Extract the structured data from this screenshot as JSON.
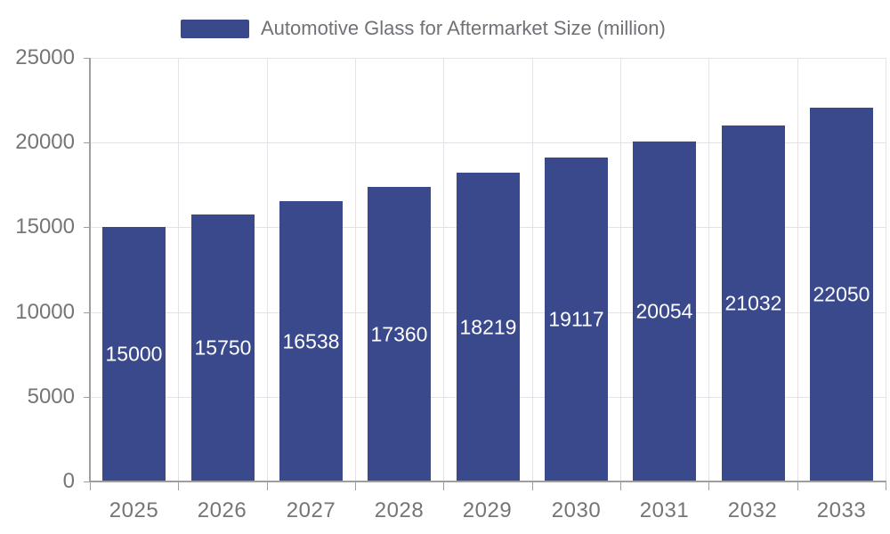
{
  "legend": {
    "label": "Automotive Glass for Aftermarket Size (million)"
  },
  "chart_data": {
    "type": "bar",
    "title": "Automotive Glass for Aftermarket Size (million)",
    "categories": [
      "2025",
      "2026",
      "2027",
      "2028",
      "2029",
      "2030",
      "2031",
      "2032",
      "2033"
    ],
    "values": [
      15000,
      15750,
      16538,
      17360,
      18219,
      19117,
      20054,
      21032,
      22050
    ],
    "xlabel": "",
    "ylabel": "",
    "ylim": [
      0,
      25000
    ],
    "yticks": [
      0,
      5000,
      10000,
      15000,
      20000,
      25000
    ],
    "grid": true,
    "legend_position": "top-center",
    "bar_labels": "inside-center"
  },
  "colors": {
    "bar": "#3a498c",
    "bar_label": "#ffffff",
    "axis_line": "#9e9e9e",
    "grid_line": "#e2e2e8",
    "axis_text": "#757575",
    "legend_text": "#6e7277",
    "background": "#ffffff"
  }
}
